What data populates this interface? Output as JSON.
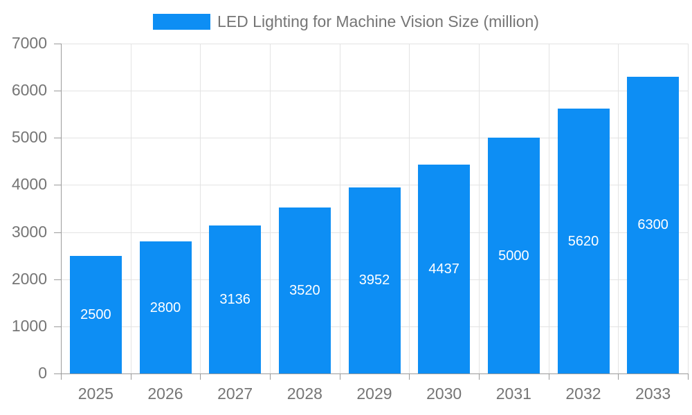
{
  "chart_data": {
    "type": "bar",
    "title": "LED Lighting for Machine Vision Size (million)",
    "categories": [
      "2025",
      "2026",
      "2027",
      "2028",
      "2029",
      "2030",
      "2031",
      "2032",
      "2033"
    ],
    "values": [
      2500,
      2800,
      3136,
      3520,
      3952,
      4437,
      5000,
      5620,
      6300
    ],
    "xlabel": "",
    "ylabel": "",
    "ylim": [
      0,
      7000
    ],
    "ytick_step": 1000,
    "ytick_labels": [
      "0",
      "1000",
      "2000",
      "3000",
      "4000",
      "5000",
      "6000",
      "7000"
    ],
    "grid": true,
    "legend_position": "top",
    "value_labels": "inside-center-white",
    "colors": {
      "bar": "#0d8ef4",
      "grid": "#e3e3e3",
      "axis": "#9a9a9a",
      "tick_text": "#757575",
      "legend_text": "#757575",
      "value_text": "#ffffff",
      "background": "#ffffff"
    }
  }
}
